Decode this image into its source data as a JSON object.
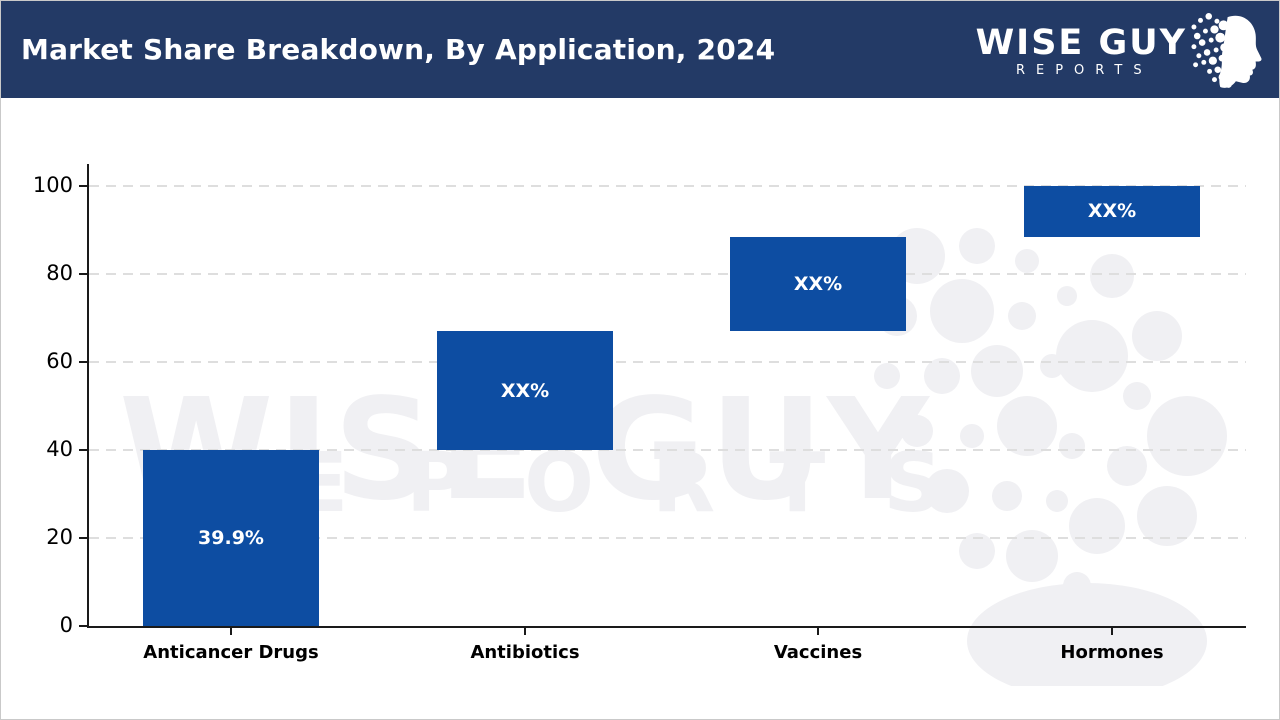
{
  "header": {
    "title": "Market Share Breakdown, By Application, 2024",
    "brand_name": "WISE GUY",
    "brand_tagline": "REPORTS",
    "bg_color": "#233a66"
  },
  "watermark": {
    "line1": "WISE GUY",
    "line2": "REPORTS"
  },
  "chart_data": {
    "type": "bar",
    "subtype": "floating-waterfall",
    "title": "Market Share Breakdown, By Application, 2024",
    "categories": [
      "Anticancer Drugs",
      "Antibiotics",
      "Vaccines",
      "Hormones"
    ],
    "segments": [
      {
        "category": "Anticancer Drugs",
        "from": 0,
        "to": 39.9,
        "label": "39.9%"
      },
      {
        "category": "Antibiotics",
        "from": 39.9,
        "to": 67,
        "label": "XX%"
      },
      {
        "category": "Vaccines",
        "from": 67,
        "to": 88.5,
        "label": "XX%"
      },
      {
        "category": "Hormones",
        "from": 88.5,
        "to": 100,
        "label": "XX%"
      }
    ],
    "xlabel": "",
    "ylabel": "",
    "ylim": [
      0,
      100
    ],
    "yticks": [
      0,
      20,
      40,
      60,
      80,
      100
    ],
    "grid": "horizontal-dashed",
    "legend": "none",
    "bar_color": "#0d4da2",
    "bar_label_color": "#ffffff"
  }
}
